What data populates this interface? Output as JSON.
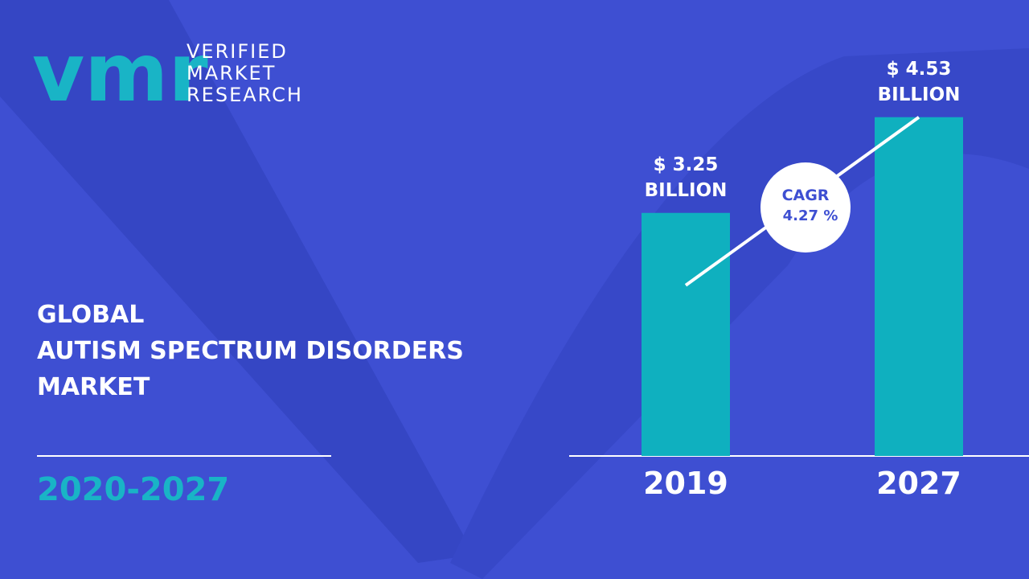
{
  "logo": {
    "mark": "vmr",
    "lines": [
      "VERIFIED",
      "MARKET",
      "RESEARCH"
    ]
  },
  "chart_data": {
    "type": "bar",
    "title": [
      "GLOBAL",
      "AUTISM SPECTRUM DISORDERS",
      "MARKET"
    ],
    "period": "2020-2027",
    "categories": [
      "2019",
      "2027"
    ],
    "values": [
      3.25,
      4.53
    ],
    "value_labels": [
      "$ 3.25 BILLION",
      "$ 4.53 BILLION"
    ],
    "color": "#0fb0bf",
    "cagr_label": "CAGR",
    "cagr_value": "4.27 %"
  }
}
